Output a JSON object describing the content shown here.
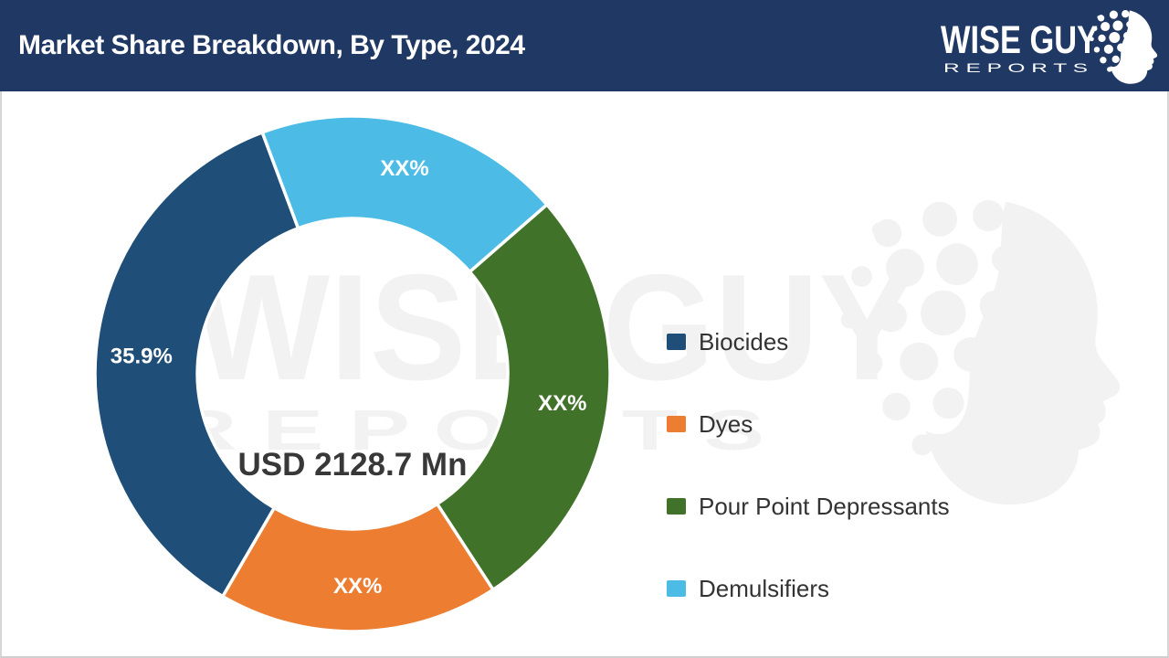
{
  "header": {
    "title": "Market Share Breakdown, By Type, 2024",
    "logo": {
      "line1": "WISE GUY",
      "line2": "R E P O R T S"
    }
  },
  "watermark": {
    "line1": "WISE GUY",
    "line2": "R E P O R T S"
  },
  "chart_data": {
    "type": "pie",
    "variant": "donut",
    "title": "Market Share Breakdown, By Type, 2024",
    "center_label": "USD 2128.7 Mn",
    "start_angle_deg": 110.5,
    "direction": "counterclockwise",
    "legend_position": "right",
    "segments": [
      {
        "label": "Biocides",
        "display_value": "35.9%",
        "percent": 35.9,
        "color": "#1F4E78"
      },
      {
        "label": "Dyes",
        "display_value": "XX%",
        "percent": 17.6,
        "color": "#EC7D31"
      },
      {
        "label": "Pour Point Depressants",
        "display_value": "XX%",
        "percent": 27.2,
        "color": "#41722A"
      },
      {
        "label": "Demulsifiers",
        "display_value": "XX%",
        "percent": 19.3,
        "color": "#4CBCE6"
      }
    ]
  },
  "colors": {
    "header_bg": "#203864",
    "header_text": "#FFFFFF",
    "content_bg": "#FFFFFF",
    "content_border": "#CFCFCF",
    "slice_label_text": "#FFFFFF",
    "center_label_text": "#383838",
    "legend_text": "#333333",
    "watermark": "#F2F2F3"
  }
}
